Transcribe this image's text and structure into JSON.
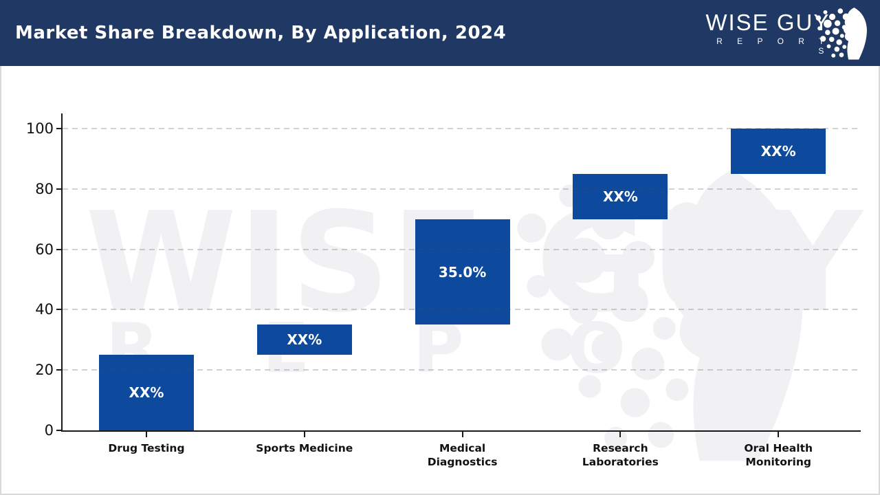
{
  "header": {
    "title": "Market Share Breakdown, By Application, 2024",
    "logo": {
      "line1": "WISE GUY",
      "line2": "R E P O R T S"
    }
  },
  "watermark": {
    "line1": "WISE GUY",
    "line2": "R E P O R T S"
  },
  "chart_data": {
    "type": "bar",
    "variant": "floating-waterfall",
    "title": "Market Share Breakdown, By Application, 2024",
    "categories": [
      "Drug Testing",
      "Sports Medicine",
      "Medical Diagnostics",
      "Research Laboratories",
      "Oral Health Monitoring"
    ],
    "bars": [
      {
        "category": "Drug Testing",
        "start": 0,
        "end": 25,
        "label": "XX%"
      },
      {
        "category": "Sports Medicine",
        "start": 25,
        "end": 35,
        "label": "XX%"
      },
      {
        "category": "Medical Diagnostics",
        "start": 35,
        "end": 70,
        "label": "35.0%"
      },
      {
        "category": "Research Laboratories",
        "start": 70,
        "end": 85,
        "label": "XX%"
      },
      {
        "category": "Oral Health Monitoring",
        "start": 85,
        "end": 100,
        "label": "XX%"
      }
    ],
    "xlabel": "",
    "ylabel": "",
    "ylim": [
      0,
      100
    ],
    "yticks": [
      "0",
      "20",
      "40",
      "60",
      "80",
      "100"
    ],
    "grid": "dashed-horizontal",
    "legend": "none"
  },
  "colors": {
    "header_bg": "#1f3864",
    "bar": "#0d4a9e",
    "bar_label": "#ffffff",
    "axis": "#1a1a1a",
    "grid": "#d6d6da",
    "watermark": "#f1f1f4",
    "background": "#ffffff",
    "border": "#d9d9d9"
  }
}
